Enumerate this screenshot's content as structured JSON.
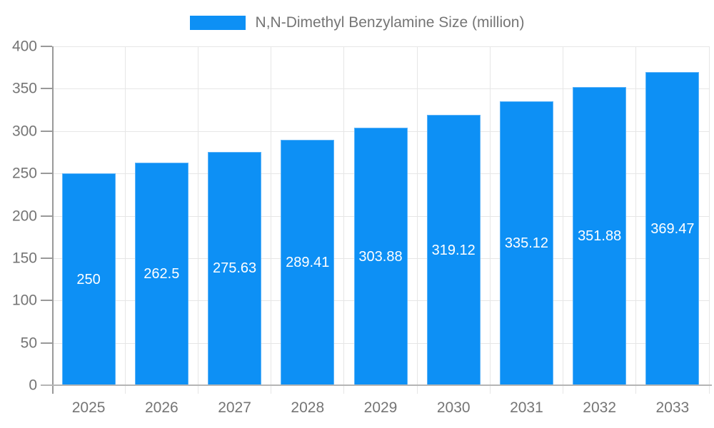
{
  "chart_data": {
    "type": "bar",
    "title": "N,N-Dimethyl Benzylamine Size (million)",
    "legend_label": "N,N-Dimethyl Benzylamine Size (million)",
    "legend_position": "top-center",
    "categories": [
      "2025",
      "2026",
      "2027",
      "2028",
      "2029",
      "2030",
      "2031",
      "2032",
      "2033"
    ],
    "values": [
      250,
      262.5,
      275.63,
      289.41,
      303.88,
      319.12,
      335.12,
      351.88,
      369.47
    ],
    "value_labels": [
      "250",
      "262.5",
      "275.63",
      "289.41",
      "303.88",
      "319.12",
      "335.12",
      "351.88",
      "369.47"
    ],
    "xlabel": "",
    "ylabel": "",
    "ylim": [
      0,
      400
    ],
    "ytick_step": 50,
    "ytick_labels": [
      "0",
      "50",
      "100",
      "150",
      "200",
      "250",
      "300",
      "350",
      "400"
    ],
    "grid": true,
    "colors": {
      "bar": "#0d90f5",
      "bar_edge": "#5cb3f8",
      "grid": "#e6e6e6",
      "axis": "#999999",
      "x_axis_line": "#b5b5b5",
      "tick_text": "#757575",
      "bar_label_text": "#ffffff",
      "background": "#ffffff"
    }
  }
}
